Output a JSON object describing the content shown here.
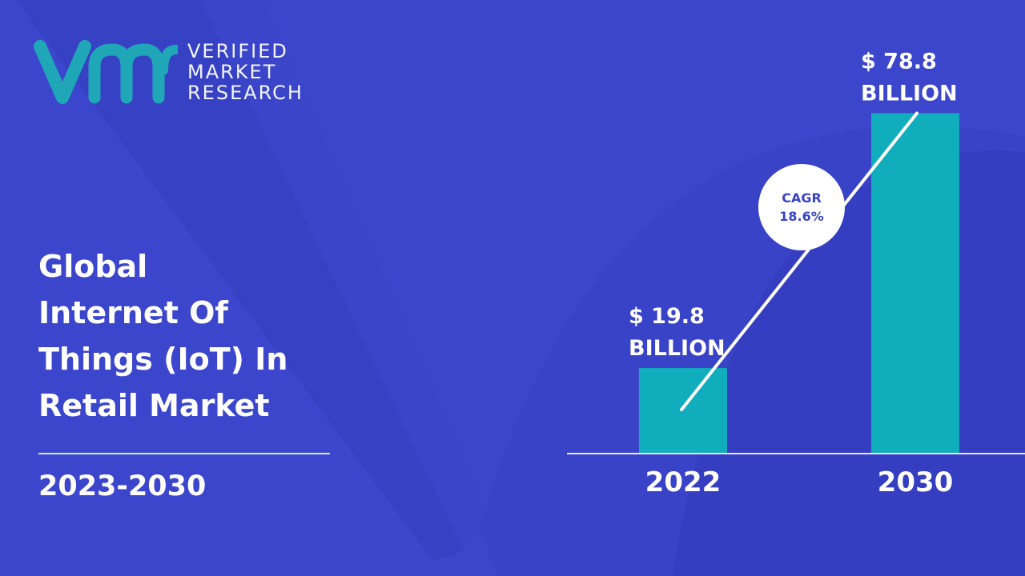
{
  "brand": {
    "line1": "VERIFIED",
    "line2": "MARKET",
    "line3": "RESEARCH",
    "mark": "vmr",
    "mark_color": "#1fa7b8"
  },
  "title": {
    "line1": "Global",
    "line2": "Internet Of",
    "line3": "Things (IoT) In",
    "line4": "Retail Market"
  },
  "period": "2023-2030",
  "colors": {
    "background": "#3c46cc",
    "bar": "#10adbd",
    "text": "#ffffff"
  },
  "chart_data": {
    "type": "bar",
    "categories": [
      "2022",
      "2030"
    ],
    "values": [
      19.8,
      78.8
    ],
    "value_labels": [
      [
        "$ 19.8",
        "BILLION"
      ],
      [
        "$ 78.8",
        "BILLION"
      ]
    ],
    "annotation": {
      "line1": "CAGR",
      "line2": "18.6%"
    },
    "grid": false
  }
}
